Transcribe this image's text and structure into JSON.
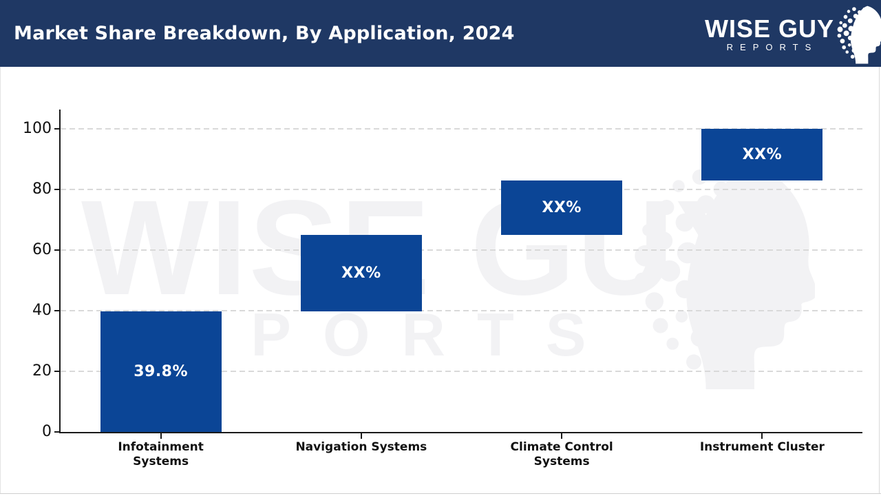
{
  "header": {
    "title": "Market Share Breakdown, By Application, 2024",
    "background_color": "#1f3864",
    "logo": {
      "line1": "WISE GUY",
      "line2": "REPORTS",
      "icon": "dotted-face-profile"
    }
  },
  "watermark": {
    "line1": "WISE GUY",
    "line2": "REPORTS",
    "icon": "dotted-face-profile",
    "color": "#f2f2f4"
  },
  "chart_data": {
    "type": "bar",
    "subtype": "waterfall",
    "title": "Market Share Breakdown, By Application, 2024",
    "categories": [
      "Infotainment Systems",
      "Navigation Systems",
      "Climate Control Systems",
      "Instrument Cluster"
    ],
    "category_label_lines": [
      [
        "Infotainment",
        "Systems"
      ],
      [
        "Navigation Systems"
      ],
      [
        "Climate Control",
        "Systems"
      ],
      [
        "Instrument Cluster"
      ]
    ],
    "segments": [
      {
        "category": "Infotainment Systems",
        "start": 0,
        "end": 39.8,
        "label": "39.8%"
      },
      {
        "category": "Navigation Systems",
        "start": 39.8,
        "end": 65,
        "label": "XX%"
      },
      {
        "category": "Climate Control Systems",
        "start": 65,
        "end": 83,
        "label": "XX%"
      },
      {
        "category": "Instrument Cluster",
        "start": 83,
        "end": 100,
        "label": "XX%"
      }
    ],
    "xlabel": "",
    "ylabel": "",
    "ylim": [
      0,
      105
    ],
    "yticks": [
      0,
      20,
      40,
      60,
      80,
      100
    ],
    "grid": "horizontal-dashed",
    "gridline_color": "#d9d9d9",
    "bar_color": "#0b4596",
    "bar_label_color": "#ffffff",
    "legend": "none"
  }
}
